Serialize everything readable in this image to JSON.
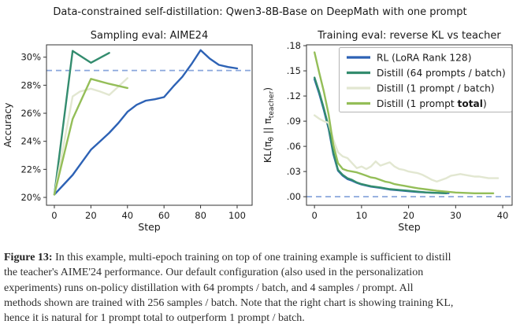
{
  "figure": {
    "title": "Data-constrained self-distillation: Qwen3-8B-Base on DeepMath with one prompt"
  },
  "colors": {
    "rl_blue": "#2d62b5",
    "distill_teal": "#338c6e",
    "distill_pale_green": "#e2e7d1",
    "distill_green": "#94be58",
    "ref_dashed_blue": "#89a6dc",
    "axis": "#333333",
    "tick_text": "#1a1a1a",
    "legend_border": "#b3b3b3"
  },
  "chart_data": [
    {
      "type": "line",
      "title": "Sampling eval: AIME24",
      "xlabel": "Step",
      "ylabel": "Accuracy",
      "xlim": [
        -4.3,
        108.2
      ],
      "ylim": [
        19.44,
        30.88
      ],
      "xticks": [
        0,
        20,
        40,
        60,
        80,
        100
      ],
      "xticklabels": [
        "0",
        "20",
        "40",
        "60",
        "80",
        "100"
      ],
      "yticks": [
        20,
        22,
        24,
        26,
        28,
        30
      ],
      "yticklabels": [
        "20%",
        "22%",
        "24%",
        "26%",
        "28%",
        "30%"
      ],
      "refline_y": 29.05,
      "grid": false,
      "series": [
        {
          "name": "RL (LoRA Rank 128)",
          "color_key": "rl_blue",
          "points": [
            [
              0,
              20.2
            ],
            [
              5,
              20.9
            ],
            [
              10,
              21.6
            ],
            [
              15,
              22.5
            ],
            [
              20,
              23.4
            ],
            [
              25,
              24.0
            ],
            [
              30,
              24.6
            ],
            [
              35,
              25.3
            ],
            [
              40,
              26.1
            ],
            [
              45,
              26.6
            ],
            [
              50,
              26.9
            ],
            [
              55,
              27.0
            ],
            [
              60,
              27.15
            ],
            [
              65,
              27.9
            ],
            [
              70,
              28.6
            ],
            [
              75,
              29.5
            ],
            [
              80,
              30.5
            ],
            [
              85,
              29.9
            ],
            [
              90,
              29.45
            ],
            [
              95,
              29.3
            ],
            [
              100,
              29.2
            ]
          ]
        },
        {
          "name": "Distill (64 prompts / batch)",
          "color_key": "distill_teal",
          "points": [
            [
              0,
              20.2
            ],
            [
              10,
              30.45
            ],
            [
              20,
              29.6
            ],
            [
              30,
              30.3
            ]
          ]
        },
        {
          "name": "Distill (1 prompt / batch)",
          "color_key": "distill_pale_green",
          "points": [
            [
              0,
              20.2
            ],
            [
              10,
              27.2
            ],
            [
              14,
              27.55
            ],
            [
              20,
              27.75
            ],
            [
              25,
              27.55
            ],
            [
              30,
              27.3
            ],
            [
              35,
              27.9
            ],
            [
              40,
              28.5
            ]
          ]
        },
        {
          "name": "Distill (1 prompt total)",
          "color_key": "distill_green",
          "points": [
            [
              0,
              20.2
            ],
            [
              10,
              25.6
            ],
            [
              20,
              28.45
            ],
            [
              30,
              28.1
            ],
            [
              40,
              27.8
            ]
          ]
        }
      ]
    },
    {
      "type": "line",
      "title": "Training eval: reverse KL vs teacher",
      "xlabel": "Step",
      "ylabel_parts": [
        {
          "t": "KL(π"
        },
        {
          "t": "θ",
          "sub": true
        },
        {
          "t": " || π"
        },
        {
          "t": "teacher",
          "sub": true
        },
        {
          "t": ")"
        }
      ],
      "xlim": [
        -1.7,
        42.0
      ],
      "ylim": [
        -0.0102,
        0.181
      ],
      "xticks": [
        0,
        10,
        20,
        30,
        40
      ],
      "xticklabels": [
        "0",
        "10",
        "20",
        "30",
        "40"
      ],
      "yticks": [
        0.0,
        0.03,
        0.06,
        0.09,
        0.12,
        0.15,
        0.18
      ],
      "yticklabels": [
        ".00",
        ".03",
        ".06",
        ".09",
        ".12",
        ".15",
        ".18"
      ],
      "refline_y": 0.0,
      "grid": false,
      "legend": {
        "entries": [
          {
            "series": 0,
            "parts": [
              {
                "t": "RL (LoRA Rank 128)"
              }
            ]
          },
          {
            "series": 1,
            "parts": [
              {
                "t": "Distill (64 prompts / batch)"
              }
            ]
          },
          {
            "series": 2,
            "parts": [
              {
                "t": "Distill (1 prompt / batch)"
              }
            ]
          },
          {
            "series": 3,
            "parts": [
              {
                "t": "Distill (1 prompt "
              },
              {
                "t": "total",
                "bold": true
              },
              {
                "t": ")"
              }
            ]
          }
        ]
      },
      "series": [
        {
          "name": "RL (LoRA Rank 128)",
          "color_key": "rl_blue",
          "points": [
            [
              0,
              0.14
            ],
            [
              1,
              0.123
            ],
            [
              2,
              0.103
            ],
            [
              3,
              0.081
            ],
            [
              4,
              0.051
            ],
            [
              5,
              0.031
            ],
            [
              6,
              0.025
            ],
            [
              7,
              0.021
            ],
            [
              8,
              0.019
            ],
            [
              9,
              0.0165
            ],
            [
              10,
              0.0145
            ],
            [
              12,
              0.012
            ],
            [
              14,
              0.0105
            ],
            [
              16,
              0.0085
            ],
            [
              18,
              0.0075
            ],
            [
              20,
              0.0065
            ],
            [
              22,
              0.0055
            ],
            [
              24,
              0.005
            ],
            [
              26,
              0.0045
            ],
            [
              28.5,
              0.0042
            ]
          ]
        },
        {
          "name": "Distill (64 prompts / batch)",
          "color_key": "distill_teal",
          "points": [
            [
              0,
              0.142
            ],
            [
              1,
              0.125
            ],
            [
              2,
              0.105
            ],
            [
              3,
              0.083
            ],
            [
              4,
              0.053
            ],
            [
              5,
              0.032
            ],
            [
              6,
              0.026
            ],
            [
              7,
              0.022
            ],
            [
              8,
              0.02
            ],
            [
              9,
              0.017
            ],
            [
              10,
              0.015
            ],
            [
              12,
              0.0125
            ],
            [
              14,
              0.011
            ],
            [
              16,
              0.009
            ],
            [
              18,
              0.008
            ],
            [
              20,
              0.007
            ],
            [
              22,
              0.006
            ],
            [
              24,
              0.005
            ],
            [
              26,
              0.0045
            ],
            [
              28,
              0.004
            ]
          ]
        },
        {
          "name": "Distill (1 prompt / batch)",
          "color_key": "distill_pale_green",
          "points": [
            [
              0,
              0.097
            ],
            [
              1,
              0.093
            ],
            [
              2,
              0.09
            ],
            [
              3,
              0.088
            ],
            [
              4,
              0.068
            ],
            [
              5,
              0.053
            ],
            [
              6,
              0.048
            ],
            [
              7,
              0.046
            ],
            [
              8,
              0.04
            ],
            [
              9,
              0.034
            ],
            [
              10,
              0.036
            ],
            [
              11,
              0.033
            ],
            [
              12,
              0.036
            ],
            [
              13,
              0.042
            ],
            [
              14,
              0.037
            ],
            [
              15,
              0.039
            ],
            [
              16,
              0.041
            ],
            [
              17,
              0.036
            ],
            [
              18,
              0.033
            ],
            [
              19,
              0.032
            ],
            [
              20,
              0.03
            ],
            [
              21,
              0.029
            ],
            [
              22,
              0.028
            ],
            [
              23,
              0.026
            ],
            [
              24,
              0.023
            ],
            [
              25,
              0.02
            ],
            [
              26,
              0.018
            ],
            [
              27,
              0.02
            ],
            [
              28,
              0.022
            ],
            [
              29,
              0.025
            ],
            [
              30,
              0.026
            ],
            [
              31,
              0.027
            ],
            [
              32,
              0.026
            ],
            [
              33,
              0.025
            ],
            [
              34,
              0.024
            ],
            [
              35,
              0.024
            ],
            [
              36,
              0.023
            ],
            [
              37,
              0.022
            ],
            [
              38,
              0.022
            ],
            [
              39,
              0.022
            ]
          ]
        },
        {
          "name": "Distill (1 prompt total)",
          "color_key": "distill_green",
          "points": [
            [
              0,
              0.172
            ],
            [
              1,
              0.148
            ],
            [
              2,
              0.125
            ],
            [
              3,
              0.098
            ],
            [
              4,
              0.062
            ],
            [
              5,
              0.04
            ],
            [
              6,
              0.033
            ],
            [
              7,
              0.031
            ],
            [
              8,
              0.03
            ],
            [
              9,
              0.029
            ],
            [
              10,
              0.027
            ],
            [
              11,
              0.025
            ],
            [
              12,
              0.023
            ],
            [
              13,
              0.022
            ],
            [
              14,
              0.02
            ],
            [
              15,
              0.018
            ],
            [
              16,
              0.017
            ],
            [
              17,
              0.015
            ],
            [
              18,
              0.014
            ],
            [
              19,
              0.013
            ],
            [
              20,
              0.012
            ],
            [
              21,
              0.011
            ],
            [
              22,
              0.01
            ],
            [
              24,
              0.0085
            ],
            [
              26,
              0.007
            ],
            [
              28,
              0.006
            ],
            [
              30,
              0.005
            ],
            [
              32,
              0.0045
            ],
            [
              34,
              0.004
            ],
            [
              36,
              0.004
            ],
            [
              38,
              0.004
            ]
          ]
        }
      ]
    }
  ],
  "caption": {
    "label": "Figure 13:",
    "lines": [
      "In this example, multi-epoch training on top of one training example is sufficient to distill",
      "the teacher's AIME'24 performance. Our default configuration (also used in the personalization",
      "experiments) runs on-policy distillation with 64 prompts / batch, and 4 samples / prompt. All",
      "methods shown are trained with 256 samples / batch. Note that the right chart is showing training KL,",
      "hence it is natural for 1 prompt total to outperform 1 prompt / batch."
    ]
  }
}
